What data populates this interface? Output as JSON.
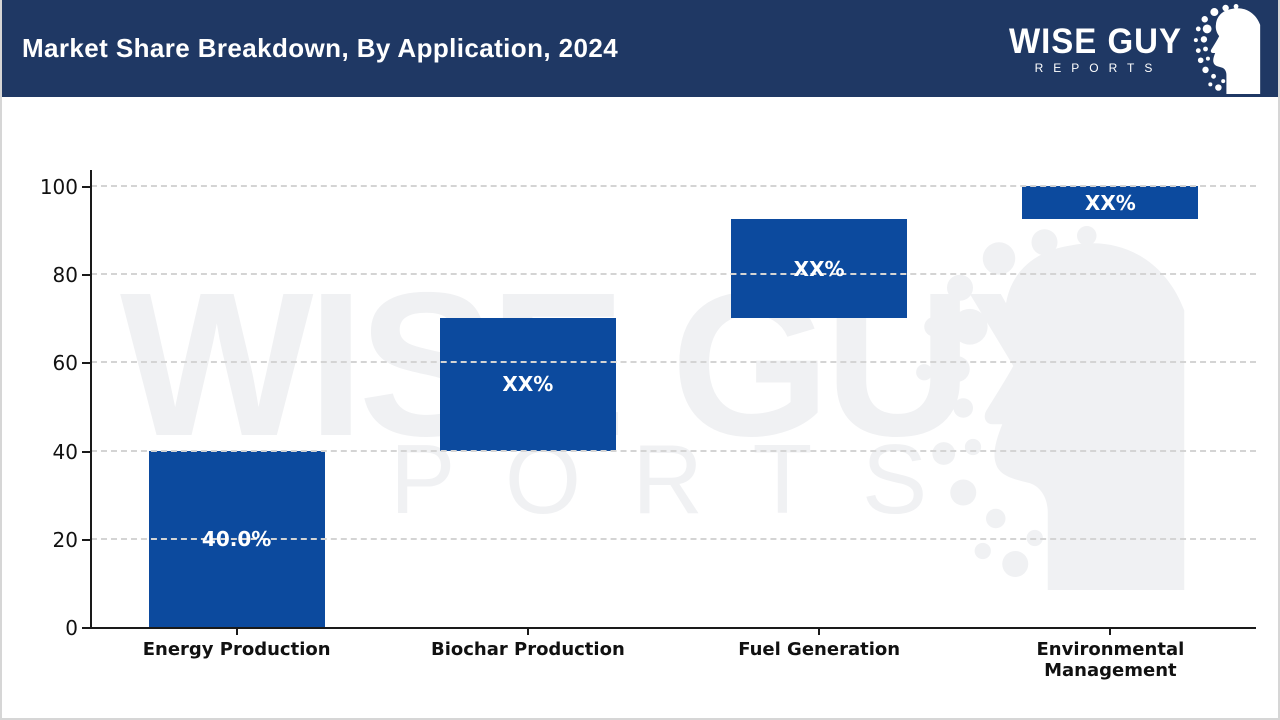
{
  "header": {
    "title": "Market Share Breakdown, By Application, 2024",
    "logo": {
      "line1": "WISE GUY",
      "line2": "REPORTS"
    }
  },
  "watermark": {
    "line1": "WISE GUY",
    "line2": "P O R T S"
  },
  "colors": {
    "header_bg": "#1f3864",
    "bar": "#0c4a9e",
    "axis": "#1a1a1a",
    "gridline": "#d4d4d4",
    "tick_label": "#111111",
    "bar_label": "#ffffff",
    "watermark": "#f0f1f3",
    "frame_border": "#d6d6d6"
  },
  "chart_data": {
    "type": "bar",
    "subtype": "waterfall",
    "title": "Market Share Breakdown, By Application, 2024",
    "categories": [
      "Energy Production",
      "Biochar Production",
      "Fuel Generation",
      "Environmental Management"
    ],
    "segments": [
      {
        "category": "Energy Production",
        "start": 0,
        "end": 40,
        "label": "40.0%"
      },
      {
        "category": "Biochar Production",
        "start": 40,
        "end": 70,
        "label": "XX%"
      },
      {
        "category": "Fuel Generation",
        "start": 70,
        "end": 92.5,
        "label": "XX%"
      },
      {
        "category": "Environmental Management",
        "start": 92.5,
        "end": 100,
        "label": "XX%"
      }
    ],
    "values_estimated": [
      40,
      30,
      22.5,
      7.5
    ],
    "xlabel": "",
    "ylabel": "",
    "ylim": [
      0,
      100
    ],
    "yticks": [
      0,
      20,
      40,
      60,
      80,
      100
    ],
    "grid": "horizontal dashed, drawn above bars",
    "legend": "none",
    "bar_color": "#0c4a9e"
  }
}
